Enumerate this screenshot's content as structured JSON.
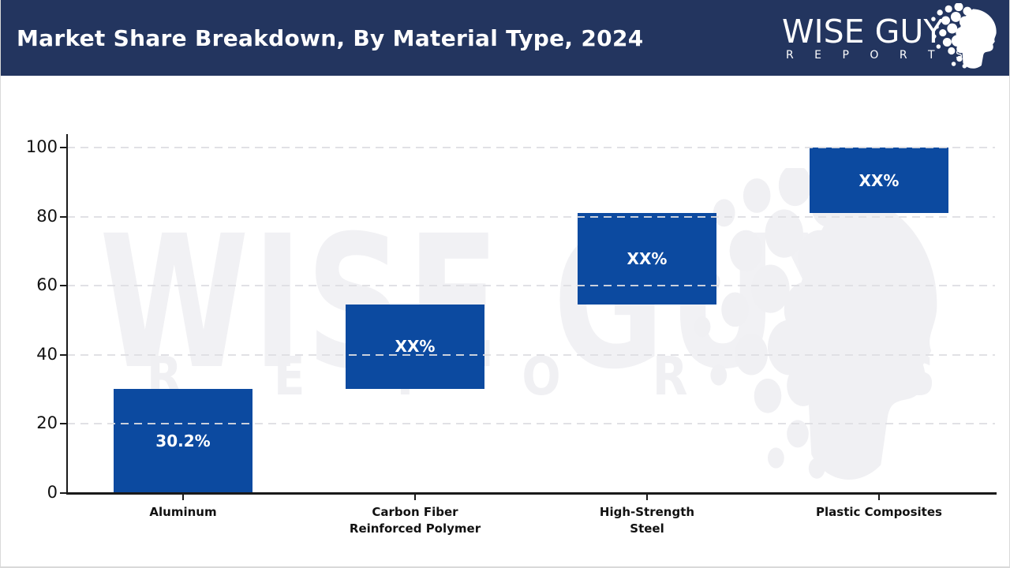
{
  "page": {
    "background": "#ffffff",
    "frame_color": "#d9d9d9"
  },
  "header": {
    "title": "Market Share Breakdown, By Material Type, 2024",
    "bg_color": "#23355F",
    "brand": {
      "name": "WISE GUY",
      "sub": "R E P O R T S"
    }
  },
  "watermark": {
    "line1": "WISE GUY",
    "line2": "R E P O R T S"
  },
  "chart_data": {
    "type": "bar",
    "subtype": "waterfall-floating-bars",
    "title": "Market Share Breakdown, By Material Type, 2024",
    "categories": [
      "Aluminum",
      "Carbon Fiber Reinforced Polymer",
      "High-Strength Steel",
      "Plastic Composites"
    ],
    "segments": [
      {
        "category": "Aluminum",
        "category_lines": [
          "Aluminum"
        ],
        "start": 0,
        "end": 30.2,
        "label": "30.2%"
      },
      {
        "category": "Carbon Fiber Reinforced Polymer",
        "category_lines": [
          "Carbon Fiber",
          "Reinforced Polymer"
        ],
        "start": 30.2,
        "end": 54.5,
        "label": "XX%"
      },
      {
        "category": "High-Strength Steel",
        "category_lines": [
          "High-Strength",
          "Steel"
        ],
        "start": 54.5,
        "end": 81,
        "label": "XX%"
      },
      {
        "category": "Plastic Composites",
        "category_lines": [
          "Plastic Composites"
        ],
        "start": 81,
        "end": 100,
        "label": "XX%"
      }
    ],
    "xlabel": "",
    "ylabel": "",
    "ylim": [
      0,
      100
    ],
    "yticks": [
      0,
      20,
      40,
      60,
      80,
      100
    ],
    "grid": "horizontal dashed",
    "grid_color": "#dedee2",
    "bar_color": "#0C4AA0",
    "bar_label_color": "#ffffff",
    "legend": "none"
  }
}
